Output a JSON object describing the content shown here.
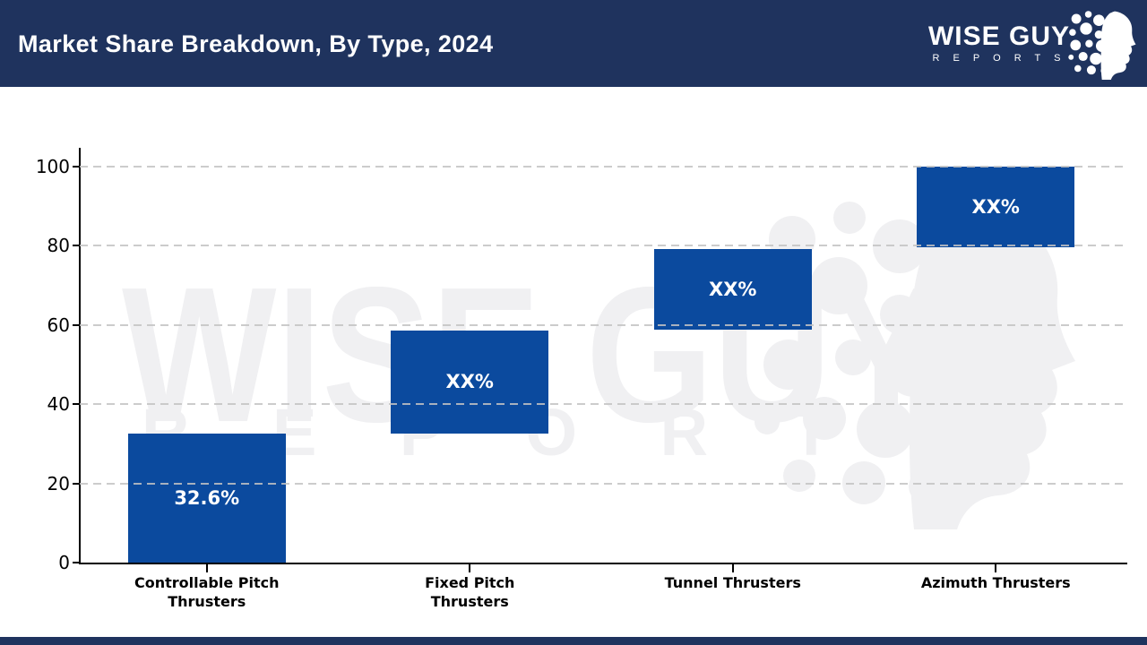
{
  "header": {
    "title": "Market Share Breakdown, By Type, 2024",
    "bg_color": "#1f335e",
    "logo": {
      "line1": "WISE GUY",
      "line2": "R E P O R T S"
    }
  },
  "watermark": {
    "line1": "WISE GUY",
    "line2": "R E P O R T S"
  },
  "chart_data": {
    "type": "bar",
    "variant": "floating waterfall-style segment bars",
    "title": "Market Share Breakdown, By Type, 2024",
    "categories": [
      "Controllable Pitch Thrusters",
      "Fixed Pitch Thrusters",
      "Tunnel Thrusters",
      "Azimuth Thrusters"
    ],
    "bars": [
      {
        "category": "Controllable Pitch Thrusters",
        "label_lines": [
          "Controllable Pitch",
          "Thrusters"
        ],
        "from": 0,
        "to": 32.6,
        "value_label": "32.6%"
      },
      {
        "category": "Fixed Pitch Thrusters",
        "label_lines": [
          "Fixed Pitch",
          "Thrusters"
        ],
        "from": 32.6,
        "to": 58.6,
        "value_label": "XX%"
      },
      {
        "category": "Tunnel Thrusters",
        "label_lines": [
          "Tunnel Thrusters"
        ],
        "from": 58.8,
        "to": 79.2,
        "value_label": "XX%"
      },
      {
        "category": "Azimuth Thrusters",
        "label_lines": [
          "Azimuth Thrusters"
        ],
        "from": 79.7,
        "to": 99.9,
        "value_label": "XX%"
      }
    ],
    "xlabel": "",
    "ylabel": "",
    "ylim": [
      0,
      105
    ],
    "yticks": [
      0,
      20,
      40,
      60,
      80,
      100
    ],
    "grid": "horizontal dashed, drawn over bars",
    "legend": "none",
    "colors": {
      "bar": "#0b4a9e",
      "bar_label": "#ffffff",
      "axis": "#000000",
      "grid": "#c9c9c9",
      "header_bg": "#1f335e",
      "watermark": "#f0f0f2"
    }
  }
}
